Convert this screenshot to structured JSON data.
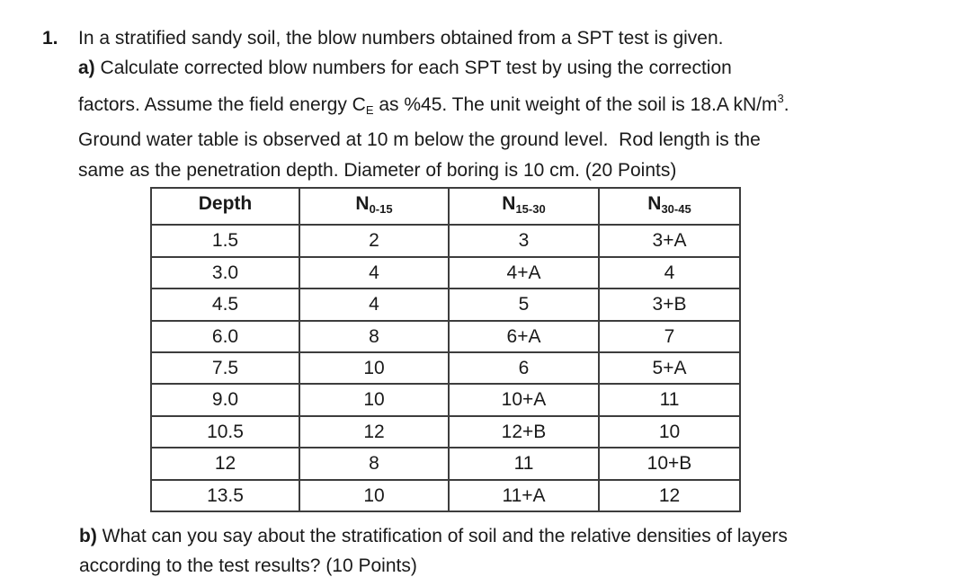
{
  "problem": {
    "number": "1.",
    "line1": "In a stratified sandy soil, the blow numbers obtained from a SPT test is given.",
    "line2_marker": "a)",
    "line2_text": " Calculate corrected blow numbers for each SPT test by using the correction",
    "line3_a": "factors. Assume the field energy C",
    "line3_sub": "E",
    "line3_b": " as %45. The unit weight of the soil is 18.A kN/m",
    "line3_sup": "3",
    "line3_c": ".",
    "line4": "Ground water table is observed at 10 m below the ground level.  Rod length is the",
    "line5": "same as the penetration depth. Diameter of boring is 10 cm. (20 Points)"
  },
  "table": {
    "headers": [
      {
        "main": "Depth",
        "sub": ""
      },
      {
        "main": "N",
        "sub": "0-15"
      },
      {
        "main": "N",
        "sub": "15-30"
      },
      {
        "main": "N",
        "sub": "30-45"
      }
    ],
    "rows": [
      [
        "1.5",
        "2",
        "3",
        "3+A"
      ],
      [
        "3.0",
        "4",
        "4+A",
        "4"
      ],
      [
        "4.5",
        "4",
        "5",
        "3+B"
      ],
      [
        "6.0",
        "8",
        "6+A",
        "7"
      ],
      [
        "7.5",
        "10",
        "6",
        "5+A"
      ],
      [
        "9.0",
        "10",
        "10+A",
        "11"
      ],
      [
        "10.5",
        "12",
        "12+B",
        "10"
      ],
      [
        "12",
        "8",
        "11",
        "10+B"
      ],
      [
        "13.5",
        "10",
        "11+A",
        "12"
      ]
    ]
  },
  "partb": {
    "marker": "b)",
    "line1_text": " What can you say about the stratification of soil and the relative densities of layers",
    "line2": "according to the test results? (10 Points)"
  },
  "colors": {
    "text": "#1a1a1a",
    "border": "#3d3d3d",
    "background": "#ffffff"
  }
}
